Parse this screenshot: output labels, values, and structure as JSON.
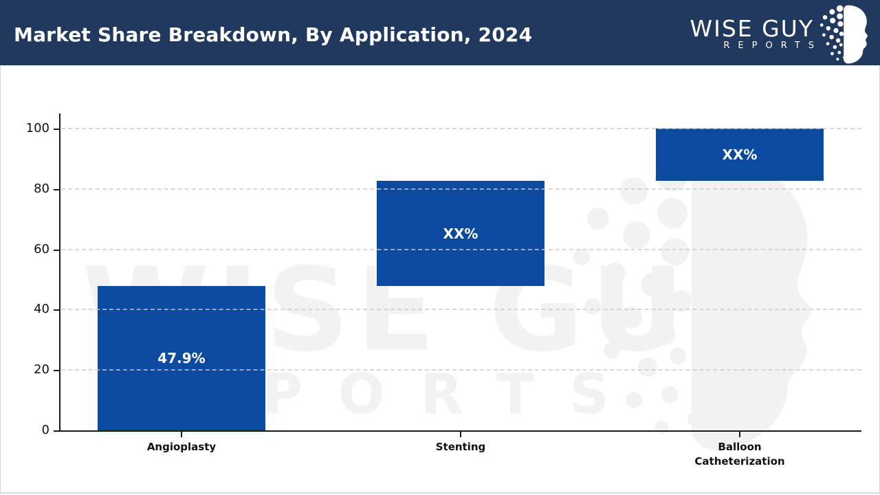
{
  "header": {
    "title": "Market Share Breakdown, By Application, 2024",
    "logo": {
      "line1": "WISE GUY",
      "line2": "REPORTS"
    }
  },
  "watermark": {
    "line1": "WISE GUY",
    "line2": "REPORTS"
  },
  "chart_data": {
    "type": "bar",
    "subtype": "waterfall",
    "title": "Market Share Breakdown, By Application, 2024",
    "categories": [
      "Angioplasty",
      "Stenting",
      "Balloon Catheterization"
    ],
    "segments": [
      {
        "category": "Angioplasty",
        "start": 0,
        "end": 47.9,
        "label": "47.9%"
      },
      {
        "category": "Stenting",
        "start": 47.9,
        "end": 82.6,
        "label": "XX%"
      },
      {
        "category": "Balloon Catheterization",
        "start": 82.6,
        "end": 100,
        "label": "XX%"
      }
    ],
    "yticks": [
      0,
      20,
      40,
      60,
      80,
      100
    ],
    "ylim": [
      0,
      105
    ],
    "grid": "horizontal-dashed",
    "legend": "none",
    "xlabel": "",
    "ylabel": "",
    "bar_color": "#0b4a9e",
    "bar_label_color": "#ffffff",
    "grid_color": "#c8cace",
    "axis_color": "#1a1a1a",
    "header_bg": "#21395e",
    "watermark_color": "#f2f2f2"
  }
}
